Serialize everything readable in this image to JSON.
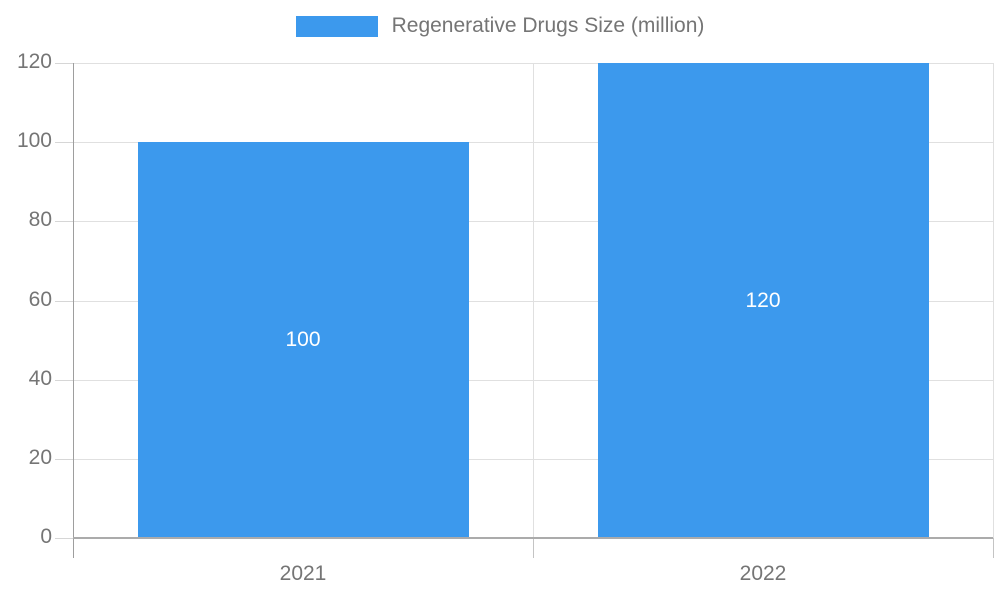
{
  "chart_data": {
    "type": "bar",
    "title": "",
    "categories": [
      "2021",
      "2022"
    ],
    "series": [
      {
        "name": "Regenerative Drugs Size (million)",
        "values": [
          100,
          120
        ]
      }
    ],
    "yticks": [
      0,
      20,
      40,
      60,
      80,
      100,
      120
    ],
    "ylim": [
      0,
      120
    ],
    "xlabel": "",
    "ylabel": "",
    "grid": true,
    "legend_position": "top",
    "bar_value_labels_visible": true
  },
  "legend": {
    "label": "Regenerative Drugs Size (million)"
  },
  "colors": {
    "bar": "#3C99ED",
    "bar_label_text": "#ffffff",
    "legend_text": "#757575",
    "axis_text": "#757575",
    "grid_line": "#e0e0e0",
    "y_tick_line": "#d6d6d6",
    "x_tick_line": "#c4c4c4",
    "axis_line_y": "#9e9e9e",
    "baseline": "#ababab",
    "background": "#ffffff"
  }
}
